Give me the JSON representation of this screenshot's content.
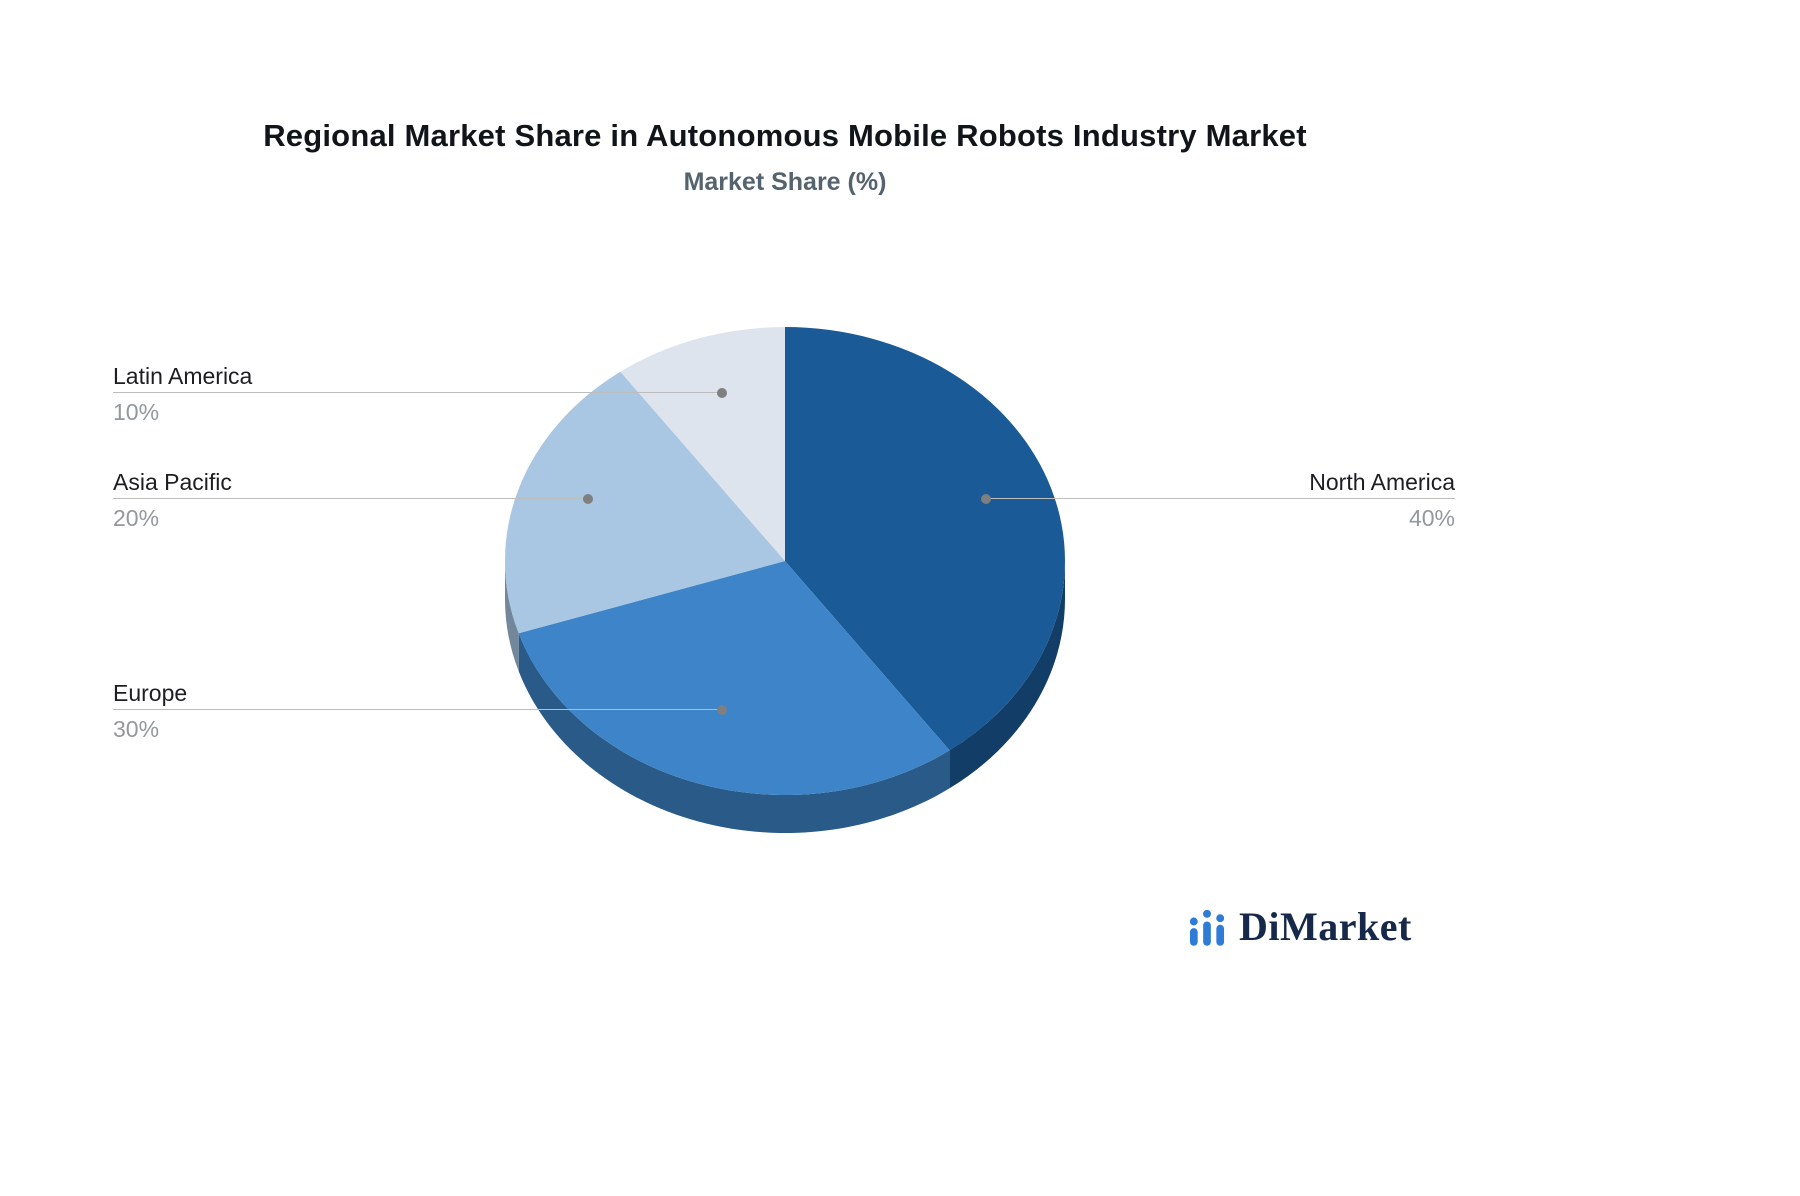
{
  "title": "Regional Market Share in Autonomous Mobile Robots Industry Market",
  "subtitle": "Market Share (%)",
  "logo": {
    "text": "DiMarket",
    "icon": "bar-chart-dots-icon",
    "icon_color": "#2e7cd6",
    "text_color": "#16294a"
  },
  "chart_data": {
    "type": "pie",
    "title": "Regional Market Share in Autonomous Mobile Robots Industry Market",
    "subtitle": "Market Share (%)",
    "unit": "%",
    "effect": "3d",
    "direction": "clockwise",
    "start_angle_deg": 0,
    "legend_position": "callout-labels",
    "segments": [
      {
        "label": "North America",
        "value": 40,
        "display": "40%",
        "color": "#1a5a96"
      },
      {
        "label": "Europe",
        "value": 30,
        "display": "30%",
        "color": "#3d85c8"
      },
      {
        "label": "Asia Pacific",
        "value": 20,
        "display": "20%",
        "color": "#a9c6e2"
      },
      {
        "label": "Latin America",
        "value": 10,
        "display": "10%",
        "color": "#dde4ed"
      }
    ]
  }
}
